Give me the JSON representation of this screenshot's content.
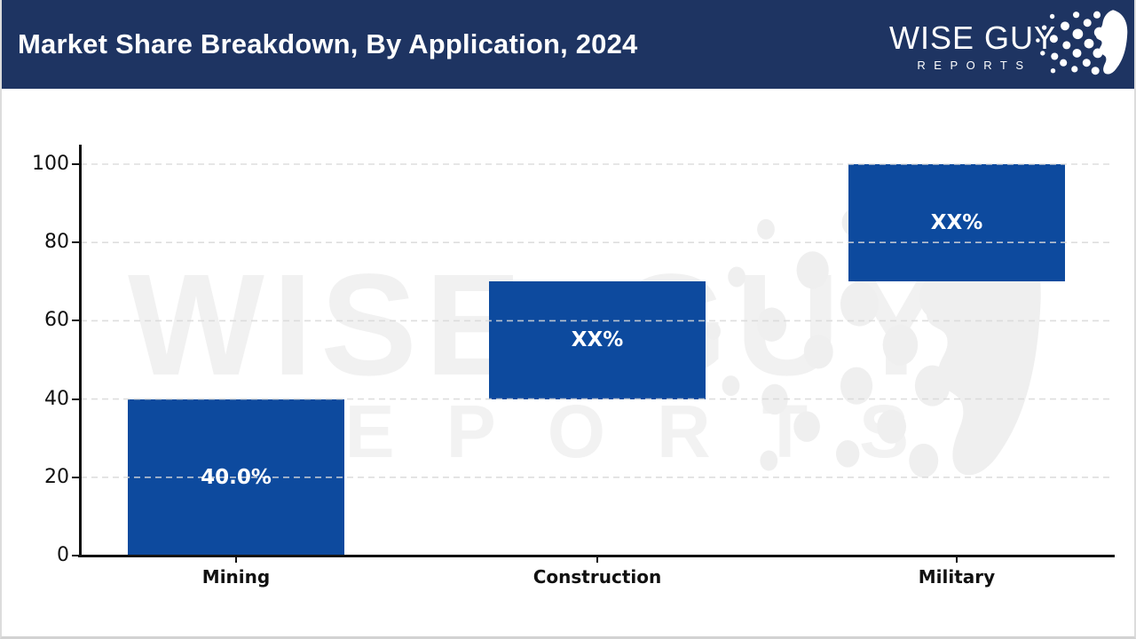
{
  "header": {
    "title": "Market Share Breakdown, By Application, 2024",
    "logo": {
      "line1": "WISE GUY",
      "line2": "REPORTS"
    }
  },
  "watermark": {
    "line1": "WISE GUY",
    "line2": "REPORTS"
  },
  "colors": {
    "header_bg": "#1e3462",
    "bar": "#0d4a9e",
    "bar_label": "#ffffff",
    "gridline": "#d9d9d9",
    "axis": "#111111",
    "watermark": "#f1f1f1"
  },
  "chart_data": {
    "type": "bar",
    "subtype": "floating-waterfall",
    "title": "Market Share Breakdown, By Application, 2024",
    "categories": [
      "Mining",
      "Construction",
      "Military"
    ],
    "segments": [
      {
        "category": "Mining",
        "start": 0,
        "end": 40,
        "label": "40.0%"
      },
      {
        "category": "Construction",
        "start": 40,
        "end": 70,
        "label": "XX%"
      },
      {
        "category": "Military",
        "start": 70,
        "end": 100,
        "label": "XX%"
      }
    ],
    "yticks": [
      0,
      20,
      40,
      60,
      80,
      100
    ],
    "ylim": [
      0,
      105
    ],
    "xlabel": "",
    "ylabel": "",
    "grid": "horizontal-dashed",
    "legend": "none"
  }
}
